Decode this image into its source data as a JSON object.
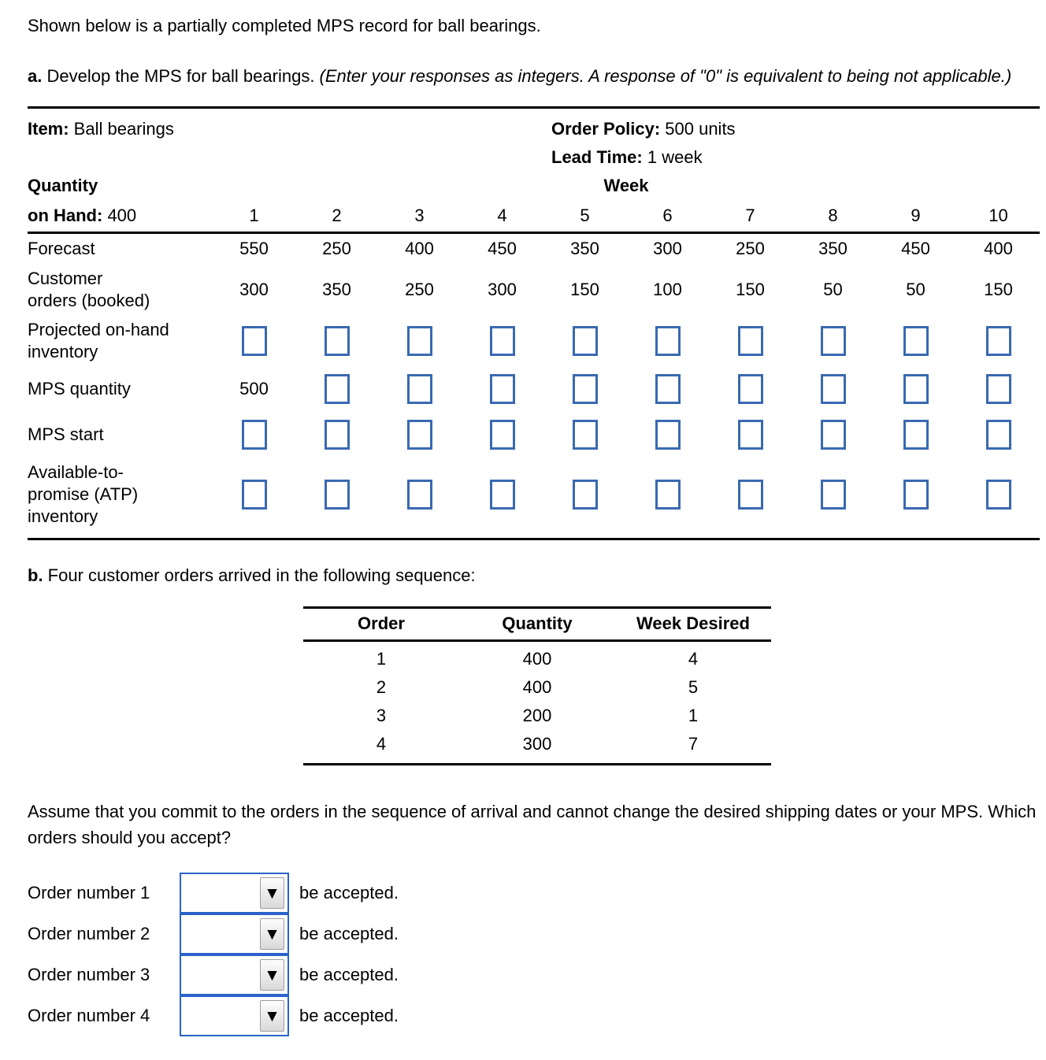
{
  "intro": "Shown below is a partially completed MPS record for ball bearings.",
  "part_a": {
    "prefix": "a.",
    "body": " Develop the MPS for ball bearings. ",
    "note": "(Enter your responses as integers. A response of \"0\" is equivalent to being not applicable.)"
  },
  "mps": {
    "item_label": "Item:",
    "item_value": " Ball bearings",
    "order_policy_label": "Order Policy:",
    "order_policy_value": " 500 units",
    "lead_time_label": "Lead Time:",
    "lead_time_value": " 1 week",
    "quantity_line1": "Quantity",
    "on_hand_label": "on Hand:",
    "on_hand_value": " 400",
    "week_header": "Week",
    "weeks": [
      "1",
      "2",
      "3",
      "4",
      "5",
      "6",
      "7",
      "8",
      "9",
      "10"
    ],
    "rows": [
      {
        "name": "forecast",
        "label_lines": [
          "Forecast"
        ],
        "cells": [
          {
            "type": "value",
            "value": "550"
          },
          {
            "type": "value",
            "value": "250"
          },
          {
            "type": "value",
            "value": "400"
          },
          {
            "type": "value",
            "value": "450"
          },
          {
            "type": "value",
            "value": "350"
          },
          {
            "type": "value",
            "value": "300"
          },
          {
            "type": "value",
            "value": "250"
          },
          {
            "type": "value",
            "value": "350"
          },
          {
            "type": "value",
            "value": "450"
          },
          {
            "type": "value",
            "value": "400"
          }
        ]
      },
      {
        "name": "customer-orders",
        "label_lines": [
          "Customer",
          "orders (booked)"
        ],
        "cells": [
          {
            "type": "value",
            "value": "300"
          },
          {
            "type": "value",
            "value": "350"
          },
          {
            "type": "value",
            "value": "250"
          },
          {
            "type": "value",
            "value": "300"
          },
          {
            "type": "value",
            "value": "150"
          },
          {
            "type": "value",
            "value": "100"
          },
          {
            "type": "value",
            "value": "150"
          },
          {
            "type": "value",
            "value": "50"
          },
          {
            "type": "value",
            "value": "50"
          },
          {
            "type": "value",
            "value": "150"
          }
        ]
      },
      {
        "name": "projected-on-hand-inventory",
        "label_lines": [
          "Projected on-hand",
          "inventory"
        ],
        "cells": [
          {
            "type": "input",
            "value": ""
          },
          {
            "type": "input",
            "value": ""
          },
          {
            "type": "input",
            "value": ""
          },
          {
            "type": "input",
            "value": ""
          },
          {
            "type": "input",
            "value": ""
          },
          {
            "type": "input",
            "value": ""
          },
          {
            "type": "input",
            "value": ""
          },
          {
            "type": "input",
            "value": ""
          },
          {
            "type": "input",
            "value": ""
          },
          {
            "type": "input",
            "value": ""
          }
        ]
      },
      {
        "name": "mps-quantity",
        "label_lines": [
          "MPS quantity"
        ],
        "cells": [
          {
            "type": "value",
            "value": "500"
          },
          {
            "type": "input",
            "value": ""
          },
          {
            "type": "input",
            "value": ""
          },
          {
            "type": "input",
            "value": ""
          },
          {
            "type": "input",
            "value": ""
          },
          {
            "type": "input",
            "value": ""
          },
          {
            "type": "input",
            "value": ""
          },
          {
            "type": "input",
            "value": ""
          },
          {
            "type": "input",
            "value": ""
          },
          {
            "type": "input",
            "value": ""
          }
        ]
      },
      {
        "name": "mps-start",
        "label_lines": [
          "MPS start"
        ],
        "cells": [
          {
            "type": "input",
            "value": ""
          },
          {
            "type": "input",
            "value": ""
          },
          {
            "type": "input",
            "value": ""
          },
          {
            "type": "input",
            "value": ""
          },
          {
            "type": "input",
            "value": ""
          },
          {
            "type": "input",
            "value": ""
          },
          {
            "type": "input",
            "value": ""
          },
          {
            "type": "input",
            "value": ""
          },
          {
            "type": "input",
            "value": ""
          },
          {
            "type": "input",
            "value": ""
          }
        ]
      },
      {
        "name": "atp-inventory",
        "label_lines": [
          "Available-to-",
          "promise (ATP)",
          "inventory"
        ],
        "cells": [
          {
            "type": "input",
            "value": ""
          },
          {
            "type": "input",
            "value": ""
          },
          {
            "type": "input",
            "value": ""
          },
          {
            "type": "input",
            "value": ""
          },
          {
            "type": "input",
            "value": ""
          },
          {
            "type": "input",
            "value": ""
          },
          {
            "type": "input",
            "value": ""
          },
          {
            "type": "input",
            "value": ""
          },
          {
            "type": "input",
            "value": ""
          },
          {
            "type": "input",
            "value": ""
          }
        ]
      }
    ]
  },
  "part_b": {
    "prefix": "b.",
    "body": " Four customer orders arrived in the following sequence:",
    "orders_table": {
      "headers": [
        "Order",
        "Quantity",
        "Week Desired"
      ],
      "rows": [
        [
          "1",
          "400",
          "4"
        ],
        [
          "2",
          "400",
          "5"
        ],
        [
          "3",
          "200",
          "1"
        ],
        [
          "4",
          "300",
          "7"
        ]
      ]
    }
  },
  "commit_question": "Assume that you commit to the orders in the sequence of arrival and cannot change the desired shipping dates or your MPS. Which orders should you accept?",
  "decisions": {
    "dropdown_icon": "▼",
    "rows": [
      {
        "label": "Order number 1",
        "selected": "",
        "suffix": "be accepted."
      },
      {
        "label": "Order number 2",
        "selected": "",
        "suffix": "be accepted."
      },
      {
        "label": "Order number 3",
        "selected": "",
        "suffix": "be accepted."
      },
      {
        "label": "Order number 4",
        "selected": "",
        "suffix": "be accepted."
      }
    ]
  }
}
